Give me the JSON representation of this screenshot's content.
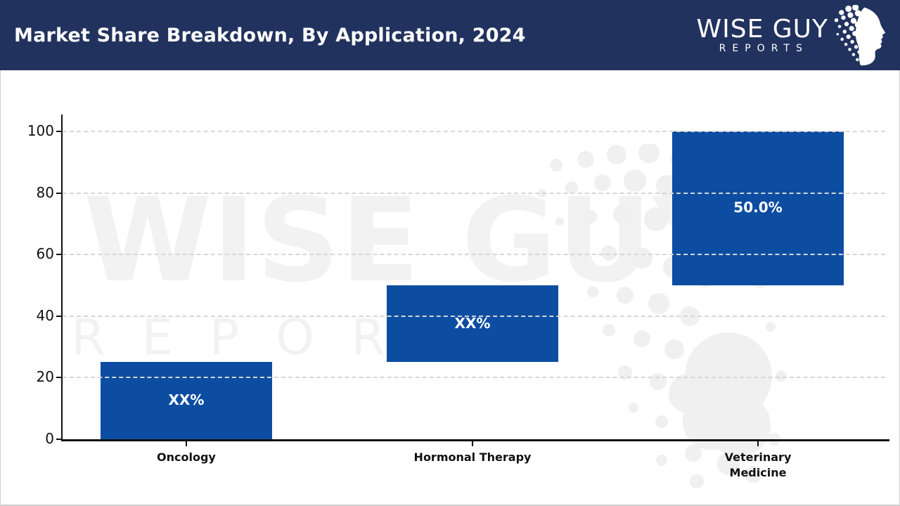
{
  "header": {
    "title": "Market Share Breakdown, By Application, 2024",
    "logo": {
      "wordmark": "WISE GUY",
      "subtitle": "REPORTS"
    }
  },
  "watermark": {
    "line1": "WISE GUY",
    "line2": "REPORTS"
  },
  "colors": {
    "header_bg": "#21325e",
    "header_text": "#ffffff",
    "bar": "#0c4da2",
    "bar_label": "#ffffff",
    "grid": "#d6d6d6",
    "axis": "#111111",
    "tick_text": "#111111",
    "watermark": "#f2f2f2",
    "watermark_dots": "#f0f0f0",
    "page_border": "#cccccc"
  },
  "chart_data": {
    "type": "bar",
    "subtype": "waterfall",
    "title": "Market Share Breakdown, By Application, 2024",
    "categories": [
      "Oncology",
      "Hormonal Therapy",
      "Veterinary\nMedicine"
    ],
    "series": [
      {
        "name": "Market Share (%)",
        "segments": [
          {
            "category": "Oncology",
            "start": 0,
            "end": 25,
            "label": "XX%"
          },
          {
            "category": "Hormonal Therapy",
            "start": 25,
            "end": 50,
            "label": "XX%"
          },
          {
            "category": "Veterinary Medicine",
            "start": 50,
            "end": 100,
            "label": "50.0%"
          }
        ]
      }
    ],
    "yticks": [
      0,
      20,
      40,
      60,
      80,
      100
    ],
    "ylim": [
      0,
      105
    ],
    "grid": true,
    "grid_style": "dashed",
    "legend": "none"
  }
}
